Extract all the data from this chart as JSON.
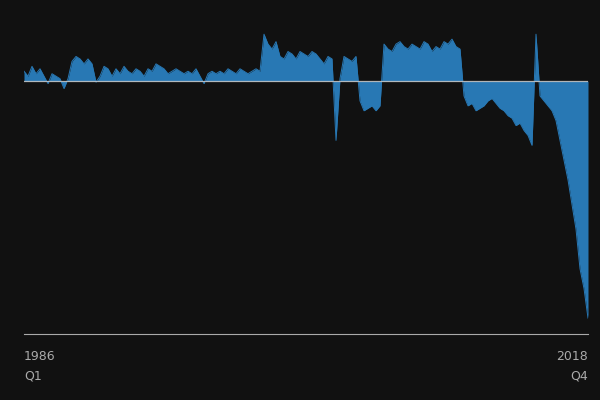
{
  "background_color": "#111111",
  "fill_color": "#2878b4",
  "line_color": "#2878b4",
  "zero_line_color": "#cccccc",
  "x_start_label": "1986",
  "x_start_sublabel": "Q1",
  "x_end_label": "2018",
  "x_end_sublabel": "Q4",
  "label_color": "#aaaaaa",
  "figsize": [
    6.0,
    4.0
  ],
  "dpi": 100,
  "ylim": [
    -50,
    14
  ],
  "values": [
    2.0,
    1.0,
    3.0,
    1.5,
    2.5,
    1.0,
    -0.5,
    1.5,
    1.0,
    0.5,
    -1.5,
    0.5,
    4.0,
    5.0,
    4.5,
    3.5,
    4.5,
    3.5,
    -0.2,
    1.0,
    3.0,
    2.5,
    1.0,
    2.5,
    1.5,
    3.0,
    2.0,
    1.5,
    2.5,
    2.0,
    1.0,
    2.5,
    2.0,
    3.5,
    3.0,
    2.5,
    1.5,
    2.0,
    2.5,
    2.0,
    1.5,
    2.0,
    1.5,
    2.5,
    1.0,
    -0.5,
    1.5,
    2.0,
    1.5,
    2.0,
    1.5,
    2.5,
    2.0,
    1.5,
    2.5,
    2.0,
    1.5,
    2.0,
    2.5,
    2.0,
    9.5,
    7.5,
    6.5,
    8.0,
    5.0,
    4.5,
    6.0,
    5.5,
    4.5,
    6.0,
    5.5,
    5.0,
    6.0,
    5.5,
    4.5,
    3.5,
    5.0,
    4.5,
    -12.0,
    0.5,
    5.0,
    4.5,
    4.0,
    5.0,
    -4.0,
    -6.0,
    -5.5,
    -5.0,
    -6.0,
    -5.0,
    7.5,
    6.5,
    6.0,
    7.5,
    8.0,
    7.0,
    6.5,
    7.5,
    7.0,
    6.5,
    8.0,
    7.5,
    6.0,
    7.0,
    6.5,
    8.0,
    7.5,
    8.5,
    7.0,
    6.5,
    -3.0,
    -5.0,
    -4.5,
    -6.0,
    -5.5,
    -5.0,
    -4.0,
    -3.5,
    -4.5,
    -5.5,
    -6.0,
    -7.0,
    -7.5,
    -9.0,
    -8.5,
    -10.0,
    -11.0,
    -13.0,
    9.5,
    -3.0,
    -4.0,
    -5.0,
    -6.0,
    -8.0,
    -12.0,
    -16.0,
    -20.0,
    -25.0,
    -30.0,
    -38.0,
    -42.0,
    -48.0
  ]
}
